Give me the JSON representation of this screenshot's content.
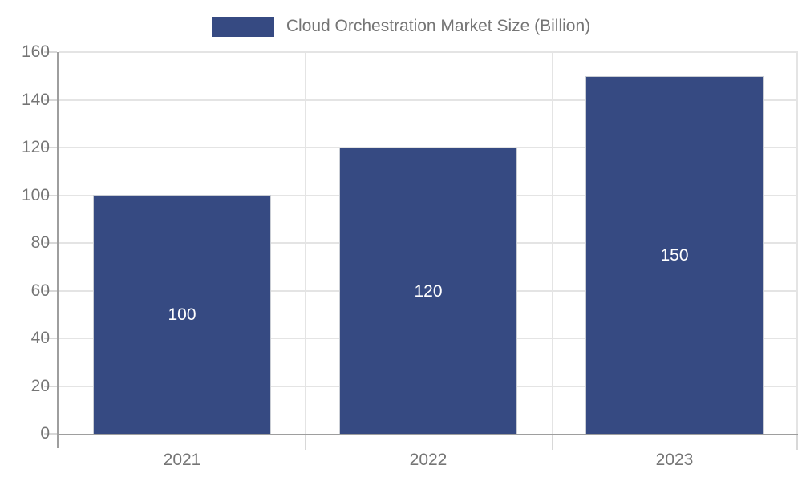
{
  "legend": {
    "label": "Cloud Orchestration Market Size (Billion)"
  },
  "chart_data": {
    "type": "bar",
    "title": "Cloud Orchestration Market Size (Billion)",
    "categories": [
      "2021",
      "2022",
      "2023"
    ],
    "values": [
      100,
      120,
      150
    ],
    "bar_labels": [
      "100",
      "120",
      "150"
    ],
    "xlabel": "",
    "ylabel": "",
    "ylim": [
      0,
      160
    ],
    "ytick_step": 20,
    "ytick_labels": [
      "0",
      "20",
      "40",
      "60",
      "80",
      "100",
      "120",
      "140",
      "160"
    ],
    "grid": true,
    "legend_position": "top-center",
    "value_labels_inside_bars": true,
    "colors": {
      "bar_fill": "#364A82",
      "bar_border": "#C9CDD4",
      "grid": "#E4E4E4",
      "axis": "#9E9E9E",
      "tick": "#D8D8D8",
      "label_text": "#757575",
      "bar_label_text": "#FFFFFF",
      "background": "#FFFFFF"
    }
  }
}
